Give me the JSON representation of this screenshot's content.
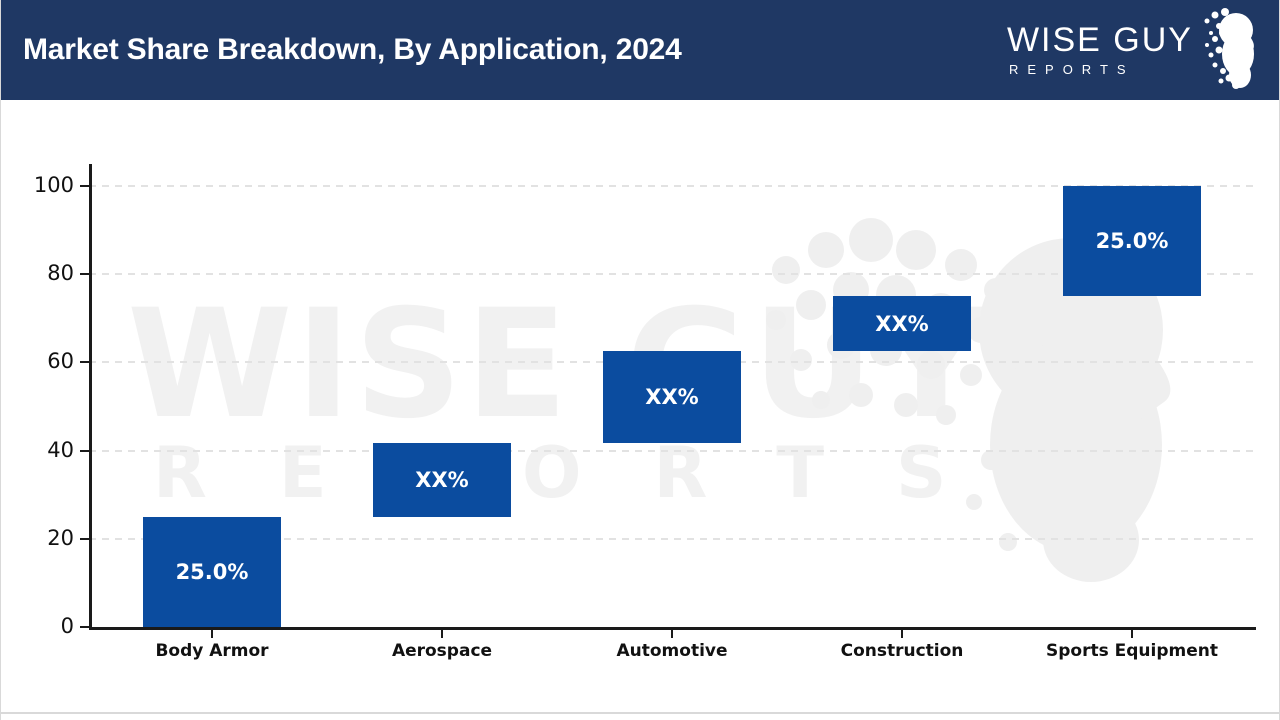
{
  "header": {
    "title": "Market Share Breakdown, By Application, 2024",
    "logo": {
      "line1": "WISE GUY",
      "line2": "REPORTS"
    }
  },
  "watermark": {
    "line1": "WISE GUY",
    "line2": "REPORTS"
  },
  "colors": {
    "header_bg": "#1f3864",
    "header_text": "#ffffff",
    "bar": "#0b4c9f",
    "bar_label": "#ffffff",
    "axis": "#1a1a1a",
    "tick_text": "#111111",
    "grid": "#e2e2e2",
    "watermark": "#f1f1f1",
    "border": "#d9d9d9"
  },
  "chart_data": {
    "type": "bar",
    "subtype": "waterfall",
    "title": "Market Share Breakdown, By Application, 2024",
    "categories": [
      "Body Armor",
      "Aerospace",
      "Automotive",
      "Construction",
      "Sports Equipment"
    ],
    "segments": [
      {
        "category": "Body Armor",
        "start": 0,
        "end": 25,
        "label": "25.0%"
      },
      {
        "category": "Aerospace",
        "start": 25,
        "end": 41.7,
        "label": "XX%"
      },
      {
        "category": "Automotive",
        "start": 41.7,
        "end": 62.5,
        "label": "XX%"
      },
      {
        "category": "Construction",
        "start": 62.5,
        "end": 75,
        "label": "XX%"
      },
      {
        "category": "Sports Equipment",
        "start": 75,
        "end": 100,
        "label": "25.0%"
      }
    ],
    "xlabel": "",
    "ylabel": "",
    "yticks": [
      0,
      20,
      40,
      60,
      80,
      100
    ],
    "ylim": [
      0,
      105
    ],
    "grid": "horizontal dashed",
    "legend": "none"
  }
}
